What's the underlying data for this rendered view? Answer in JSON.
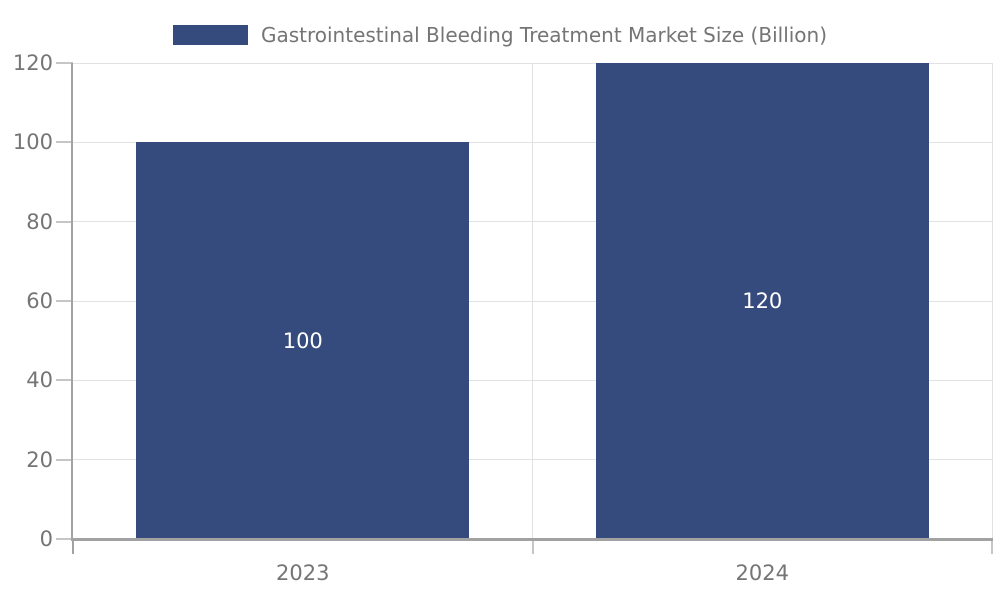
{
  "legend": {
    "label": "Gastrointestinal Bleeding Treatment Market Size (Billion)"
  },
  "chart_data": {
    "type": "bar",
    "title": "Gastrointestinal Bleeding Treatment Market Size (Billion)",
    "categories": [
      "2023",
      "2024"
    ],
    "values": [
      100,
      120
    ],
    "bar_labels": [
      "100",
      "120"
    ],
    "xlabel": "",
    "ylabel": "",
    "ylim": [
      0,
      120
    ],
    "yticks": [
      0,
      20,
      40,
      60,
      80,
      100,
      120
    ],
    "grid": true,
    "legend_position": "top-center",
    "colors": {
      "bar": "#364B7D",
      "bar_label": "#ffffff",
      "tick_label": "#757575",
      "grid": "#e2e2e2",
      "tick": "#c6c6c6",
      "axis": "#a2a2a2"
    }
  }
}
